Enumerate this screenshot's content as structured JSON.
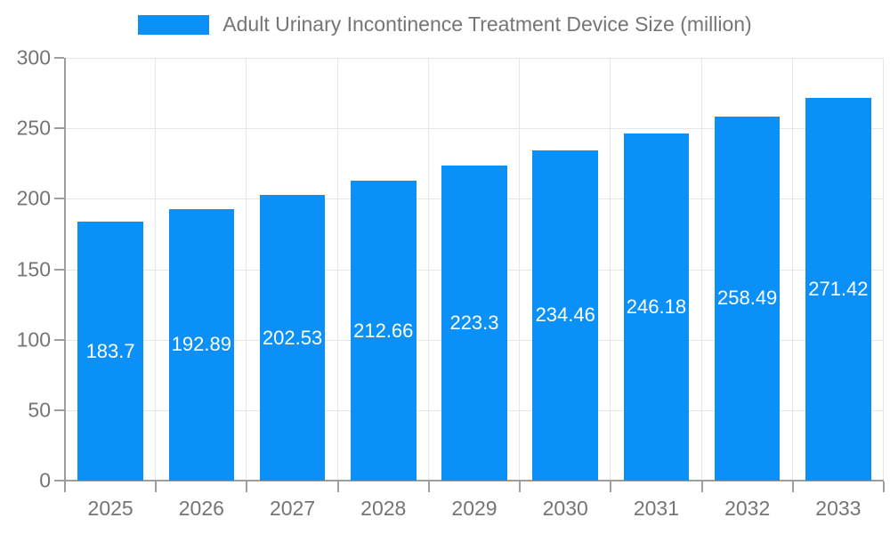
{
  "chart_data": {
    "type": "bar",
    "title": "Adult Urinary Incontinence Treatment Device Size (million)",
    "legend": {
      "label": "Adult Urinary Incontinence Treatment Device Size (million)"
    },
    "categories": [
      "2025",
      "2026",
      "2027",
      "2028",
      "2029",
      "2030",
      "2031",
      "2032",
      "2033"
    ],
    "values": [
      183.7,
      192.89,
      202.53,
      212.66,
      223.3,
      234.46,
      246.18,
      258.49,
      271.42
    ],
    "value_labels": [
      "183.7",
      "192.89",
      "202.53",
      "212.66",
      "223.3",
      "234.46",
      "246.18",
      "258.49",
      "271.42"
    ],
    "xlabel": "",
    "ylabel": "",
    "ylim": [
      0,
      300
    ],
    "ytick_step": 50,
    "ytick_labels": [
      "0",
      "50",
      "100",
      "150",
      "200",
      "250",
      "300"
    ],
    "grid": "on",
    "legend_position": "top-center",
    "colors": {
      "bar": "#0b90f8",
      "grid": "#e7e7e7",
      "axis": "#9e9e9e",
      "tick_label": "#757575",
      "value_label": "#ffffff"
    }
  }
}
